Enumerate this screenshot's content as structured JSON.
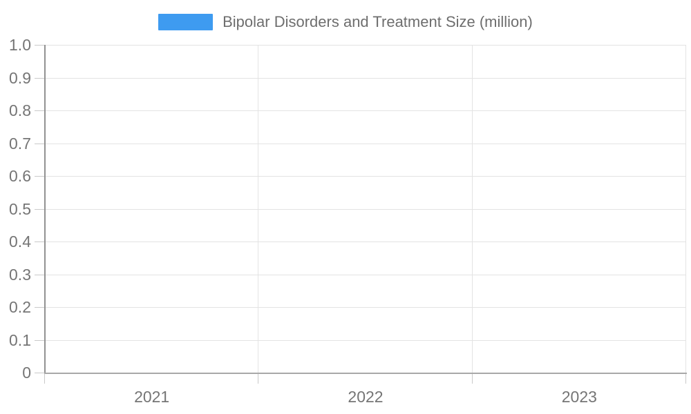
{
  "legend": {
    "label": "Bipolar Disorders and Treatment Size (million)",
    "swatch_color": "#3e9bf0"
  },
  "chart_data": {
    "type": "bar",
    "title": "Bipolar Disorders and Treatment Size (million)",
    "categories": [
      "2021",
      "2022",
      "2023"
    ],
    "series": [
      {
        "name": "Bipolar Disorders and Treatment Size (million)",
        "values": []
      }
    ],
    "xlabel": "",
    "ylabel": "",
    "ylim": [
      0,
      1
    ],
    "y_tick_labels": [
      "1.0",
      "0.9",
      "0.8",
      "0.7",
      "0.6",
      "0.5",
      "0.4",
      "0.3",
      "0.2",
      "0.1",
      "0"
    ],
    "grid": true,
    "legend_position": "top-center",
    "plot_empty": true
  },
  "colors": {
    "accent_blue": "#3e9bf0",
    "legend_text": "#6e6e6e",
    "axis_label_text": "#757575",
    "gridline": "#e3e3e3",
    "axis_line_y": "#919191",
    "axis_line_x": "#a8a8a8",
    "tick": "#c9c9c9",
    "background": "#ffffff"
  }
}
